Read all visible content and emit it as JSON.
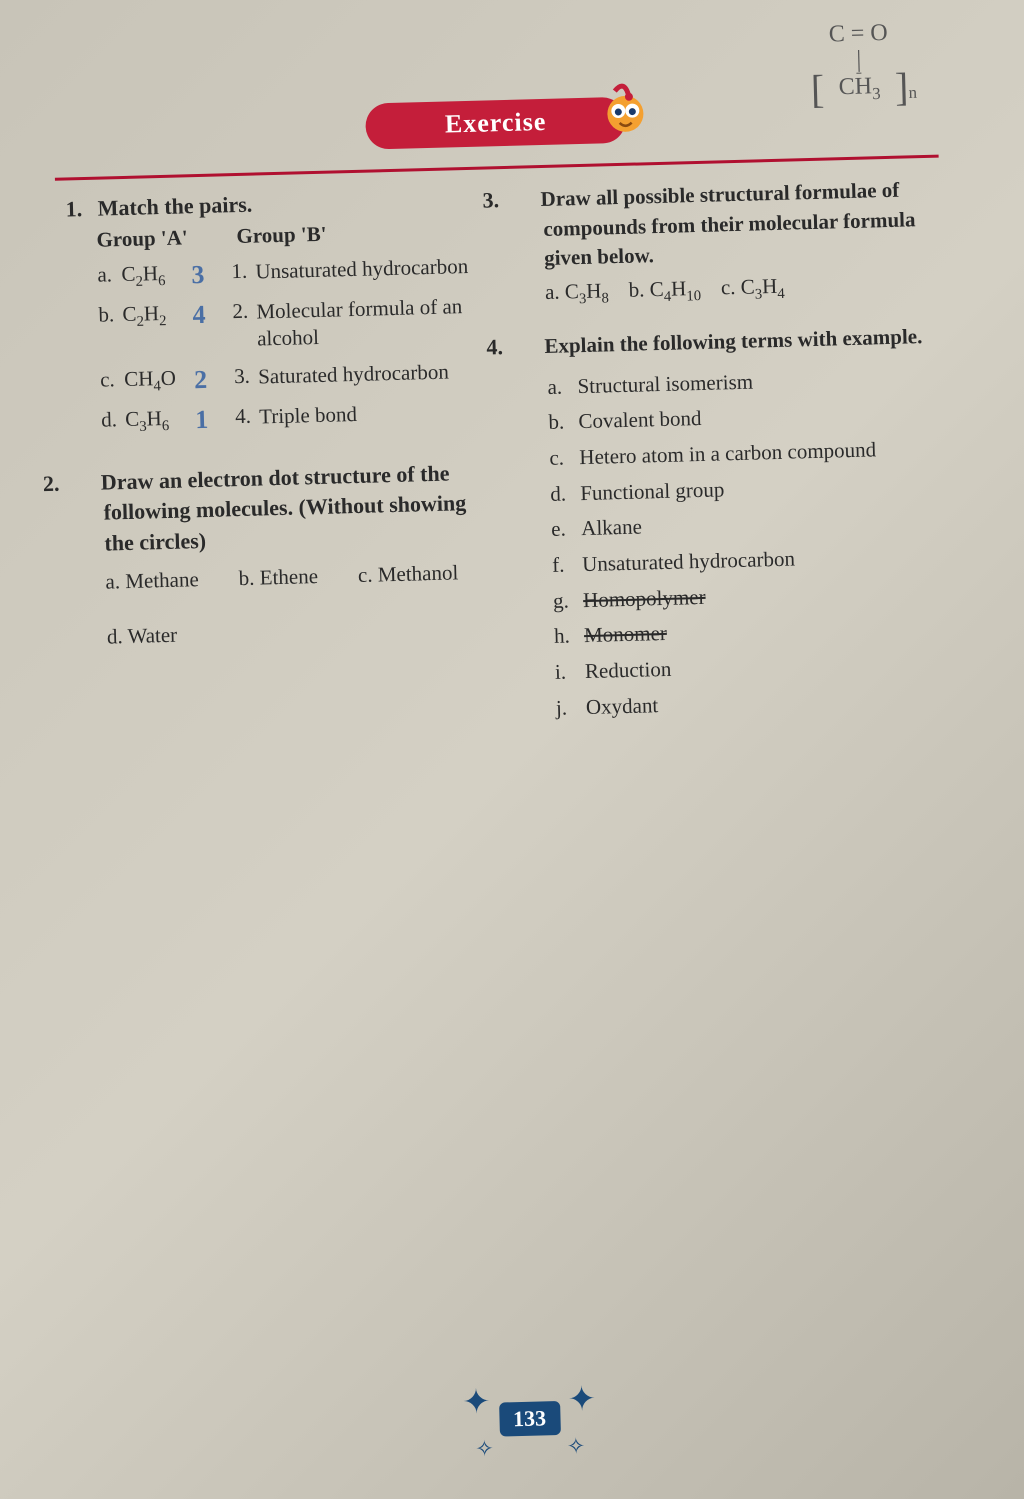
{
  "topFormula": {
    "co": "C = O",
    "ch3": "CH",
    "ch3_sub": "3",
    "n": "n"
  },
  "banner": "Exercise",
  "q1": {
    "num": "1.",
    "title": "Match the pairs.",
    "groupA": "Group 'A'",
    "groupB": "Group 'B'",
    "rows": [
      {
        "letter": "a.",
        "formula_base": "C",
        "f_sub1": "2",
        "f_mid": "H",
        "f_sub2": "6",
        "hand": "3",
        "bnum": "1.",
        "btext": "Unsaturated hydrocarbon"
      },
      {
        "letter": "b.",
        "formula_base": "C",
        "f_sub1": "2",
        "f_mid": "H",
        "f_sub2": "2",
        "hand": "4",
        "bnum": "2.",
        "btext": "Molecular formula of an alcohol"
      },
      {
        "letter": "c.",
        "formula_base": "CH",
        "f_sub1": "4",
        "f_mid": "O",
        "f_sub2": "",
        "hand": "2",
        "bnum": "3.",
        "btext": "Saturated hydrocarbon"
      },
      {
        "letter": "d.",
        "formula_base": "C",
        "f_sub1": "3",
        "f_mid": "H",
        "f_sub2": "6",
        "hand": "1",
        "bnum": "4.",
        "btext": "Triple bond"
      }
    ]
  },
  "q2": {
    "num": "2.",
    "text": "Draw an electron dot structure of the following molecules. (Without showing the circles)",
    "items": [
      {
        "l": "a.",
        "t": "Methane"
      },
      {
        "l": "b.",
        "t": "Ethene"
      },
      {
        "l": "c.",
        "t": "Methanol"
      },
      {
        "l": "d.",
        "t": "Water"
      }
    ]
  },
  "q3": {
    "num": "3.",
    "text": "Draw all possible structural formulae of compounds from their molecular formula given below.",
    "items": [
      {
        "l": "a.",
        "b": "C",
        "s1": "3",
        "m": "H",
        "s2": "8"
      },
      {
        "l": "b.",
        "b": "C",
        "s1": "4",
        "m": "H",
        "s2": "10"
      },
      {
        "l": "c.",
        "b": "C",
        "s1": "3",
        "m": "H",
        "s2": "4"
      }
    ]
  },
  "q4": {
    "num": "4.",
    "text": "Explain the following terms with example.",
    "items": [
      {
        "l": "a.",
        "t": "Structural isomerism",
        "strike": false
      },
      {
        "l": "b.",
        "t": "Covalent bond",
        "strike": false
      },
      {
        "l": "c.",
        "t": "Hetero atom in a carbon compound",
        "strike": false
      },
      {
        "l": "d.",
        "t": "Functional group",
        "strike": false
      },
      {
        "l": "e.",
        "t": "Alkane",
        "strike": false
      },
      {
        "l": "f.",
        "t": "Unsaturated hydrocarbon",
        "strike": false
      },
      {
        "l": "g.",
        "t": "Homopolymer",
        "strike": true
      },
      {
        "l": "h.",
        "t": "Monomer",
        "strike": true
      },
      {
        "l": "i.",
        "t": "Reduction",
        "strike": false
      },
      {
        "l": "j.",
        "t": "Oxydant",
        "strike": false
      }
    ]
  },
  "pageNum": "133"
}
